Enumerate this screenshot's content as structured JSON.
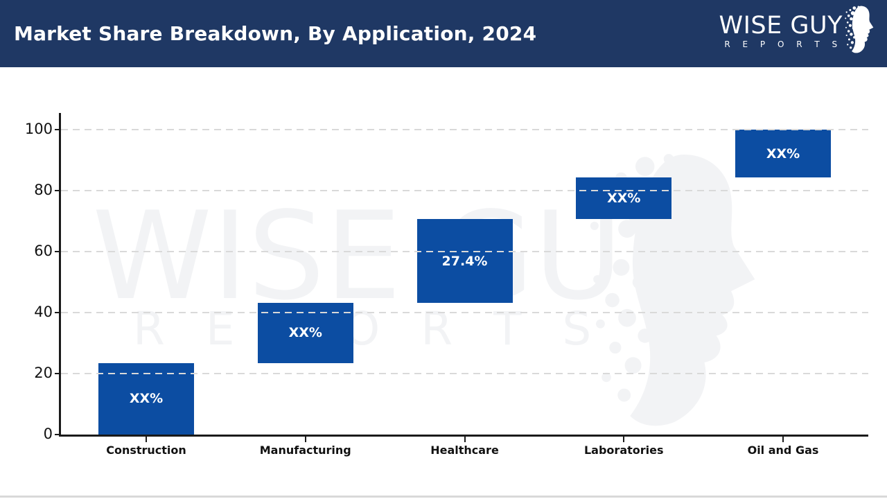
{
  "header": {
    "title": "Market Share Breakdown, By Application, 2024",
    "logo": {
      "line1": "WISE GUY",
      "line2": "R E P O R T S"
    }
  },
  "watermark": {
    "line1": "WISE GUY",
    "line2": "R E P O R T S"
  },
  "colors": {
    "header_bg": "#1F3864",
    "bar": "#0C4DA2",
    "grid": "#D9D9D9",
    "axis": "#1A1A1A",
    "bar_label": "#FFFFFF",
    "title_text": "#FFFFFF",
    "watermark": "#F2F3F5",
    "footer_line": "#D9D9D9"
  },
  "chart_data": {
    "type": "bar",
    "subtype": "waterfall",
    "title": "Market Share Breakdown, By Application, 2024",
    "categories": [
      "Construction",
      "Manufacturing",
      "Healthcare",
      "Laboratories",
      "Oil and Gas"
    ],
    "segments": [
      {
        "category": "Construction",
        "start": 0,
        "end": 23.5,
        "label": "XX%"
      },
      {
        "category": "Manufacturing",
        "start": 23.5,
        "end": 43.2,
        "label": "XX%"
      },
      {
        "category": "Healthcare",
        "start": 43.2,
        "end": 70.6,
        "label": "27.4%"
      },
      {
        "category": "Laboratories",
        "start": 70.6,
        "end": 84.3,
        "label": "XX%"
      },
      {
        "category": "Oil and Gas",
        "start": 84.3,
        "end": 100,
        "label": "XX%"
      }
    ],
    "xlabel": "",
    "ylabel": "",
    "ylim": [
      0,
      100
    ],
    "yticks": [
      0,
      20,
      40,
      60,
      80,
      100
    ],
    "grid": "horizontal-dashed",
    "legend": "none"
  }
}
